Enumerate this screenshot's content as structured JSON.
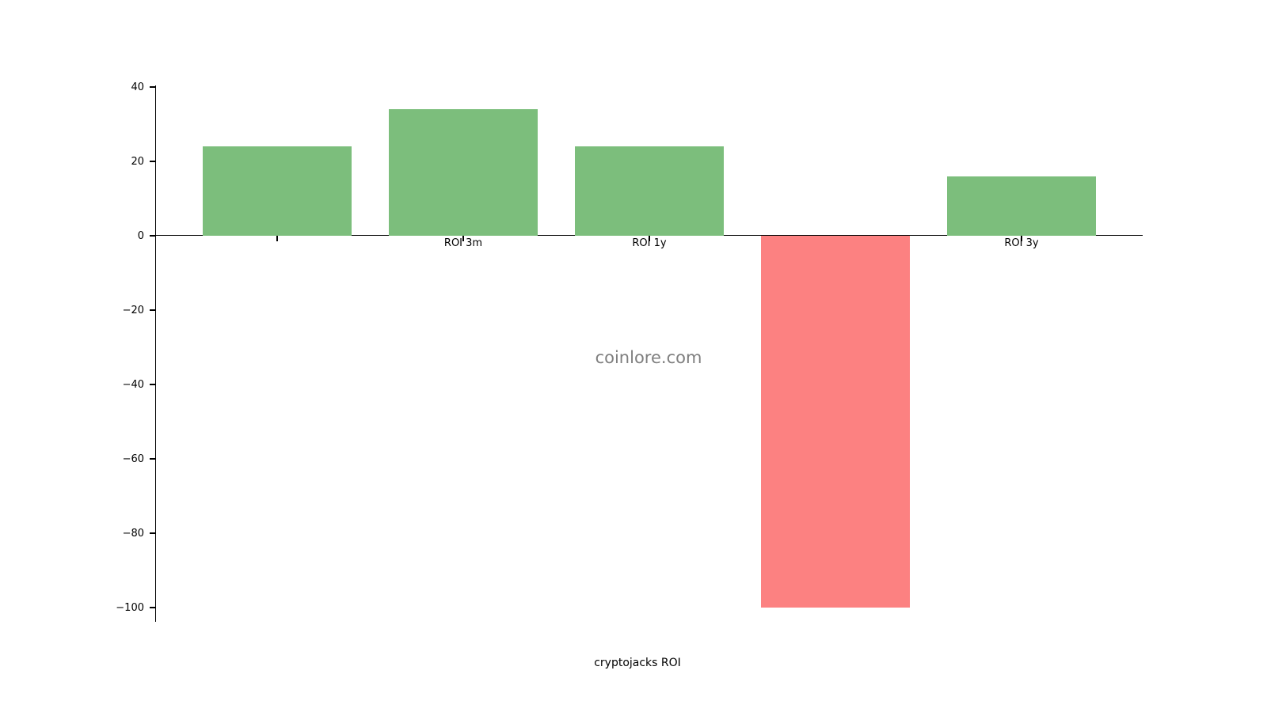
{
  "page": {
    "background": "#ffffff"
  },
  "chart_data": {
    "type": "bar",
    "categories": [
      "",
      "ROI 3m",
      "ROI 1y",
      "",
      "ROI 3y"
    ],
    "values": [
      24,
      34,
      24,
      -100,
      16
    ],
    "series": [
      {
        "name": "cryptojacks ROI",
        "values": [
          24,
          34,
          24,
          -100,
          16
        ]
      }
    ],
    "bar_colors": [
      "#7cbe7c",
      "#7cbe7c",
      "#7cbe7c",
      "#fc8181",
      "#7cbe7c"
    ],
    "positive_color": "#7cbe7c",
    "negative_color": "#fc8181",
    "title": "",
    "xlabel": "cryptojacks ROI",
    "ylabel": "",
    "y_ticks": [
      40,
      20,
      0,
      -20,
      -40,
      -60,
      -80,
      -100
    ],
    "ylim": [
      -104,
      40
    ],
    "grid": false,
    "legend": "none",
    "watermark": "coinlore.com",
    "axis_color": "#000000",
    "text_color": "#000000",
    "watermark_color": "#7f7f7f"
  }
}
